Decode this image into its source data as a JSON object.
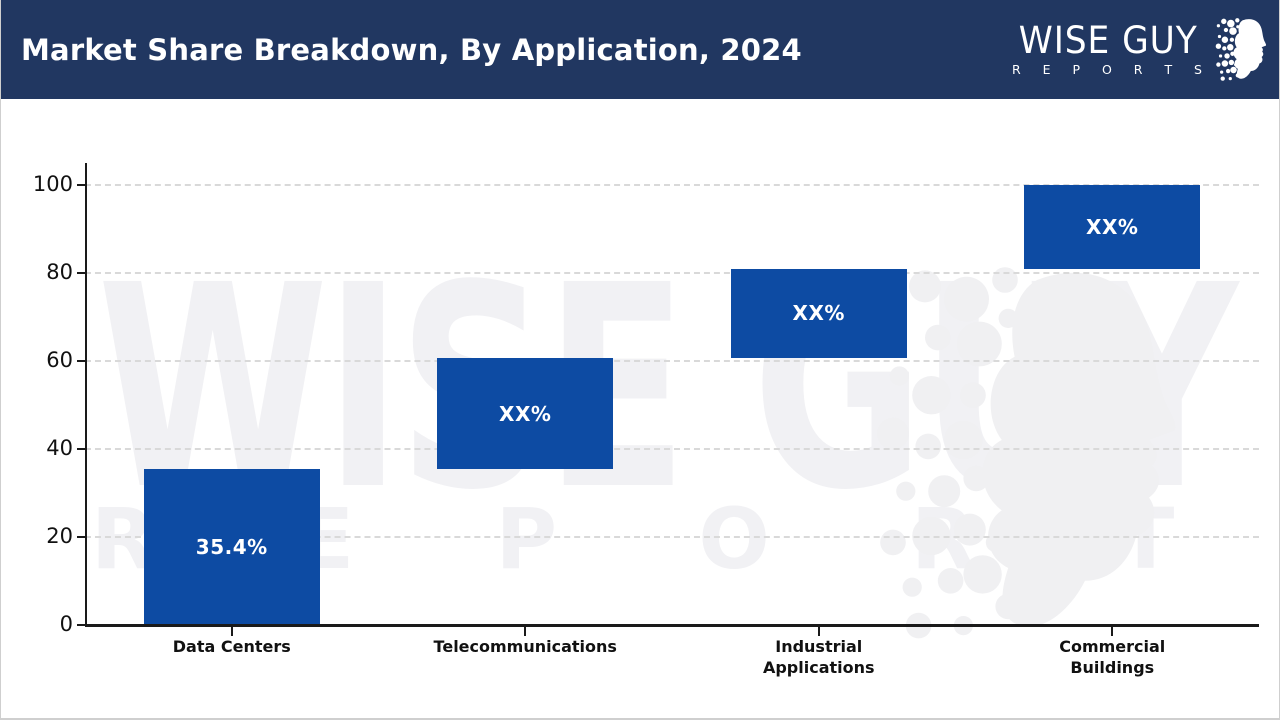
{
  "header": {
    "title": "Market Share Breakdown, By Application, 2024",
    "bg_color": "#213761",
    "logo": {
      "name_top": "WISE GUY",
      "name_bottom": "R E P O R T S",
      "face_icon": "dotted-head-profile"
    }
  },
  "watermark": {
    "line1": "WISE GUY",
    "line2": "R E P O R T S",
    "face_icon": "dotted-head-profile",
    "color": "#f1f1f4"
  },
  "chart_data": {
    "type": "bar",
    "subtype": "waterfall",
    "title": "Market Share Breakdown, By Application, 2024",
    "categories": [
      "Data Centers",
      "Telecommunications",
      "Industrial Applications",
      "Commercial Buildings"
    ],
    "categories_display": [
      [
        "Data Centers"
      ],
      [
        "Telecommunications"
      ],
      [
        "Industrial",
        "Applications"
      ],
      [
        "Commercial",
        "Buildings"
      ]
    ],
    "segments": [
      {
        "category": "Data Centers",
        "start": 0,
        "end": 35.4,
        "label": "35.4%"
      },
      {
        "category": "Telecommunications",
        "start": 35.4,
        "end": 60.6,
        "label": "XX%"
      },
      {
        "category": "Industrial Applications",
        "start": 60.6,
        "end": 81.0,
        "label": "XX%"
      },
      {
        "category": "Commercial Buildings",
        "start": 81.0,
        "end": 100.0,
        "label": "XX%"
      }
    ],
    "bar_labels": [
      "35.4%",
      "XX%",
      "XX%",
      "XX%"
    ],
    "xlabel": "",
    "ylabel": "",
    "ylim": [
      0,
      100
    ],
    "yticks": [
      0,
      20,
      40,
      60,
      80,
      100
    ],
    "grid": "horizontal-dashed",
    "legend": "none",
    "bar_color": "#0d4ba3",
    "bar_label_color": "#ffffff",
    "axis_color": "#1a1a1a",
    "gridline_color": "#d9d9d9"
  }
}
